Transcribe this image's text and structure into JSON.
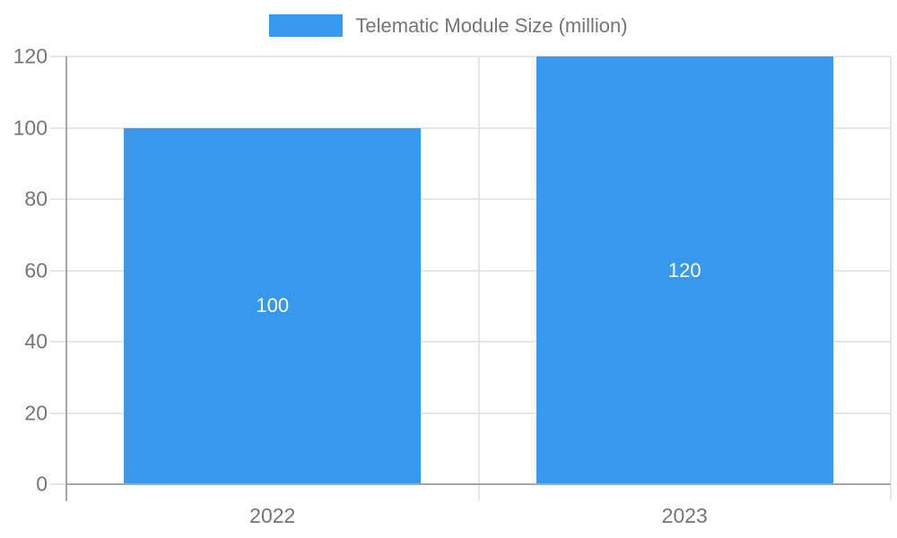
{
  "chart_data": {
    "type": "bar",
    "title": "",
    "categories": [
      "2022",
      "2023"
    ],
    "series": [
      {
        "name": "Telematic Module Size (million)",
        "values": [
          100,
          120
        ],
        "color": "#3898EC"
      }
    ],
    "bar_value_labels": [
      "100",
      "120"
    ],
    "xlabel": "",
    "ylabel": "",
    "ylim": [
      0,
      120
    ],
    "yticks": [
      0,
      20,
      40,
      60,
      80,
      100,
      120
    ],
    "grid": true,
    "legend_position": "top-center",
    "colors": {
      "bar": "#3898EC",
      "grid_line": "#e6e6e6",
      "axis_line": "#a6a6a6",
      "tick_label": "#757575",
      "bar_label": "#ffffff",
      "background": "#ffffff"
    }
  }
}
